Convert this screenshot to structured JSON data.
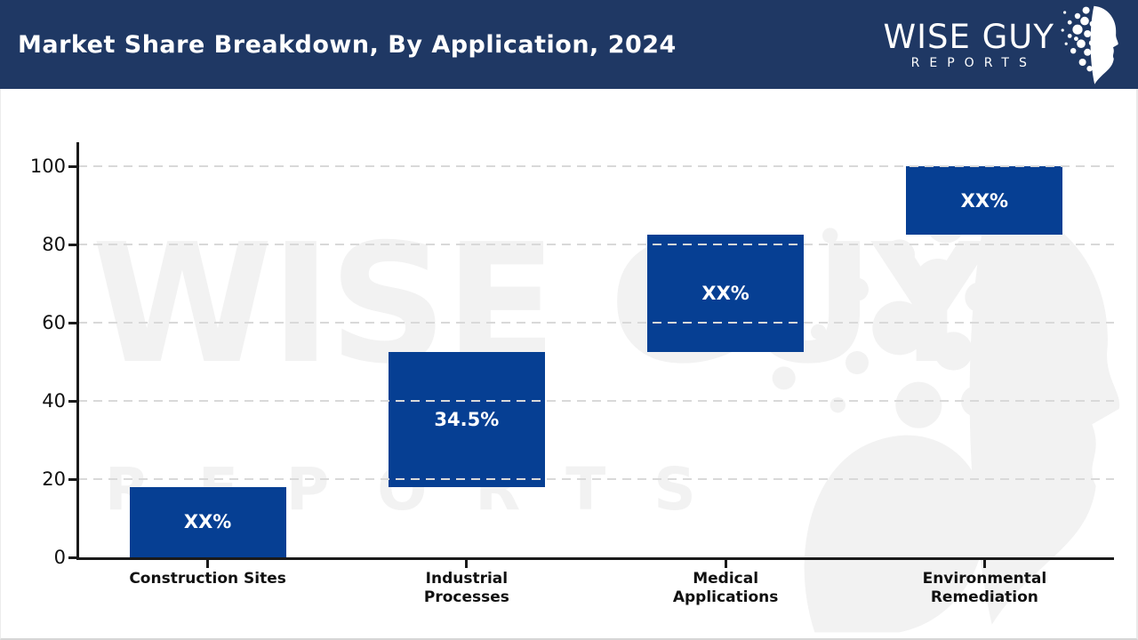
{
  "header": {
    "title": "Market Share Breakdown, By Application, 2024",
    "background_color": "#1F3864",
    "logo": {
      "primary": "WISE GUY",
      "secondary": "REPORTS"
    }
  },
  "watermark": {
    "primary": "WISE GUY",
    "secondary": "REPORTS"
  },
  "chart_data": {
    "type": "bar",
    "subtype": "waterfall",
    "title": "Market Share Breakdown, By Application, 2024",
    "categories": [
      "Construction Sites",
      "Industrial Processes",
      "Medical Applications",
      "Environmental Remediation"
    ],
    "category_label_lines": [
      [
        "Construction Sites"
      ],
      [
        "Industrial",
        "Processes"
      ],
      [
        "Medical",
        "Applications"
      ],
      [
        "Environmental",
        "Remediation"
      ]
    ],
    "bars": [
      {
        "category": "Construction Sites",
        "start": 0,
        "end": 18,
        "value_label": "XX%"
      },
      {
        "category": "Industrial Processes",
        "start": 18,
        "end": 52.5,
        "value_label": "34.5%"
      },
      {
        "category": "Medical Applications",
        "start": 52.5,
        "end": 82.5,
        "value_label": "XX%"
      },
      {
        "category": "Environmental Remediation",
        "start": 82.5,
        "end": 100,
        "value_label": "XX%"
      }
    ],
    "y_ticks": [
      "0",
      "20",
      "40",
      "60",
      "80",
      "100"
    ],
    "ylim": [
      0,
      100
    ],
    "bar_color": "#063F93",
    "grid": {
      "horizontal": true,
      "style": "dashed",
      "color": "#d9d9d9"
    },
    "legend": "none",
    "axis_color": "#1a1a1a"
  }
}
